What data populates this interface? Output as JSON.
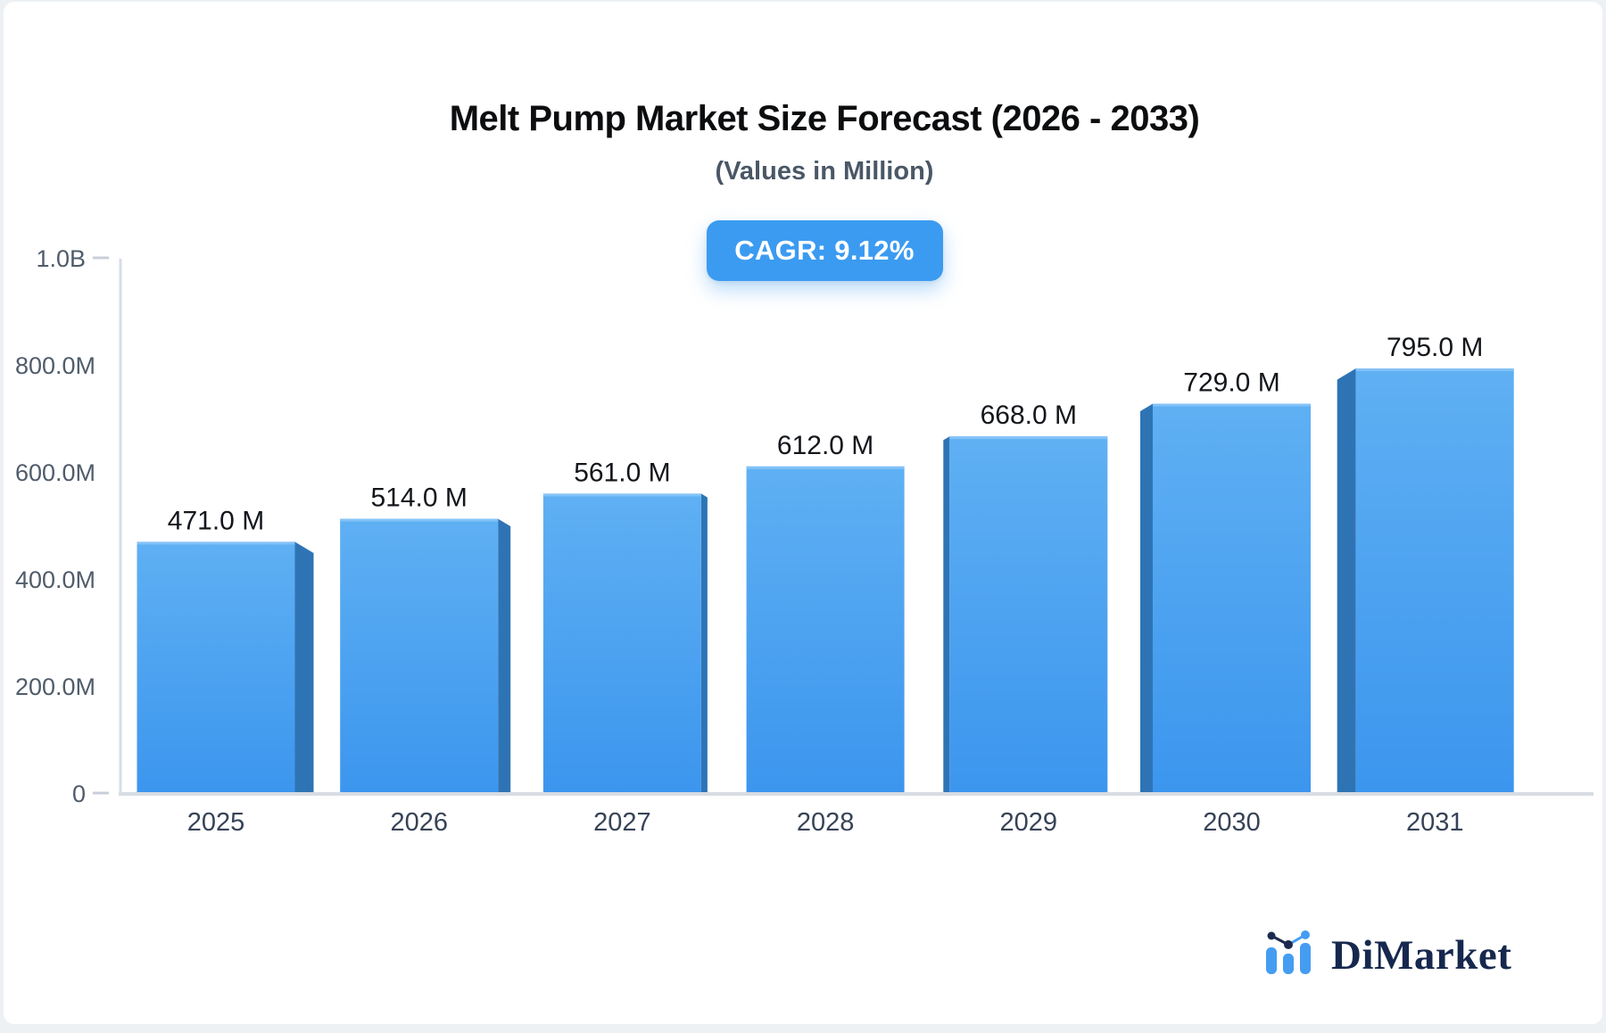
{
  "header": {
    "title": "Melt Pump Market Size Forecast (2026 - 2033)",
    "subtitle": "(Values in Million)",
    "cagr_label": "CAGR: 9.12%"
  },
  "footer": {
    "brand_name": "DiMarket"
  },
  "colors": {
    "accent_blue": "#3b9bf1",
    "bar_face_top": "#5fb0f3",
    "bar_face_bottom": "#3c96ee",
    "bar_side": "#2e74b5",
    "bar_top_highlight": "#8ac6f8",
    "axis_line": "#d8dce3",
    "tick_dash": "#c9cfd8",
    "y_label": "#505c6b",
    "x_label": "#374357",
    "value_label": "#13161b",
    "badge_text": "#ffffff",
    "logo_navy": "#1b2b4d",
    "logo_blue": "#459df2",
    "page_bg": "#eef1f4",
    "card_bg": "#ffffff"
  },
  "chart_data": {
    "type": "bar",
    "title": "Melt Pump Market Size Forecast (2026 - 2033)",
    "subtitle": "(Values in Million)",
    "annotation": "CAGR: 9.12%",
    "categories": [
      "2025",
      "2026",
      "2027",
      "2028",
      "2029",
      "2030",
      "2031"
    ],
    "values": [
      471,
      514,
      561,
      612,
      668,
      729,
      795
    ],
    "value_labels": [
      "471.0 M",
      "514.0 M",
      "561.0 M",
      "612.0 M",
      "668.0 M",
      "729.0 M",
      "795.0 M"
    ],
    "unit": "Million",
    "ylim": [
      0,
      1000
    ],
    "y_ticks": [
      {
        "label": "0",
        "value": 0,
        "dash": true
      },
      {
        "label": "200.0M",
        "value": 200,
        "dash": false
      },
      {
        "label": "400.0M",
        "value": 400,
        "dash": false
      },
      {
        "label": "600.0M",
        "value": 600,
        "dash": false
      },
      {
        "label": "800.0M",
        "value": 800,
        "dash": false
      },
      {
        "label": "1.0B",
        "value": 1000,
        "dash": true
      }
    ],
    "grid": false,
    "legend": "none",
    "style": "3d-perspective-bars"
  }
}
